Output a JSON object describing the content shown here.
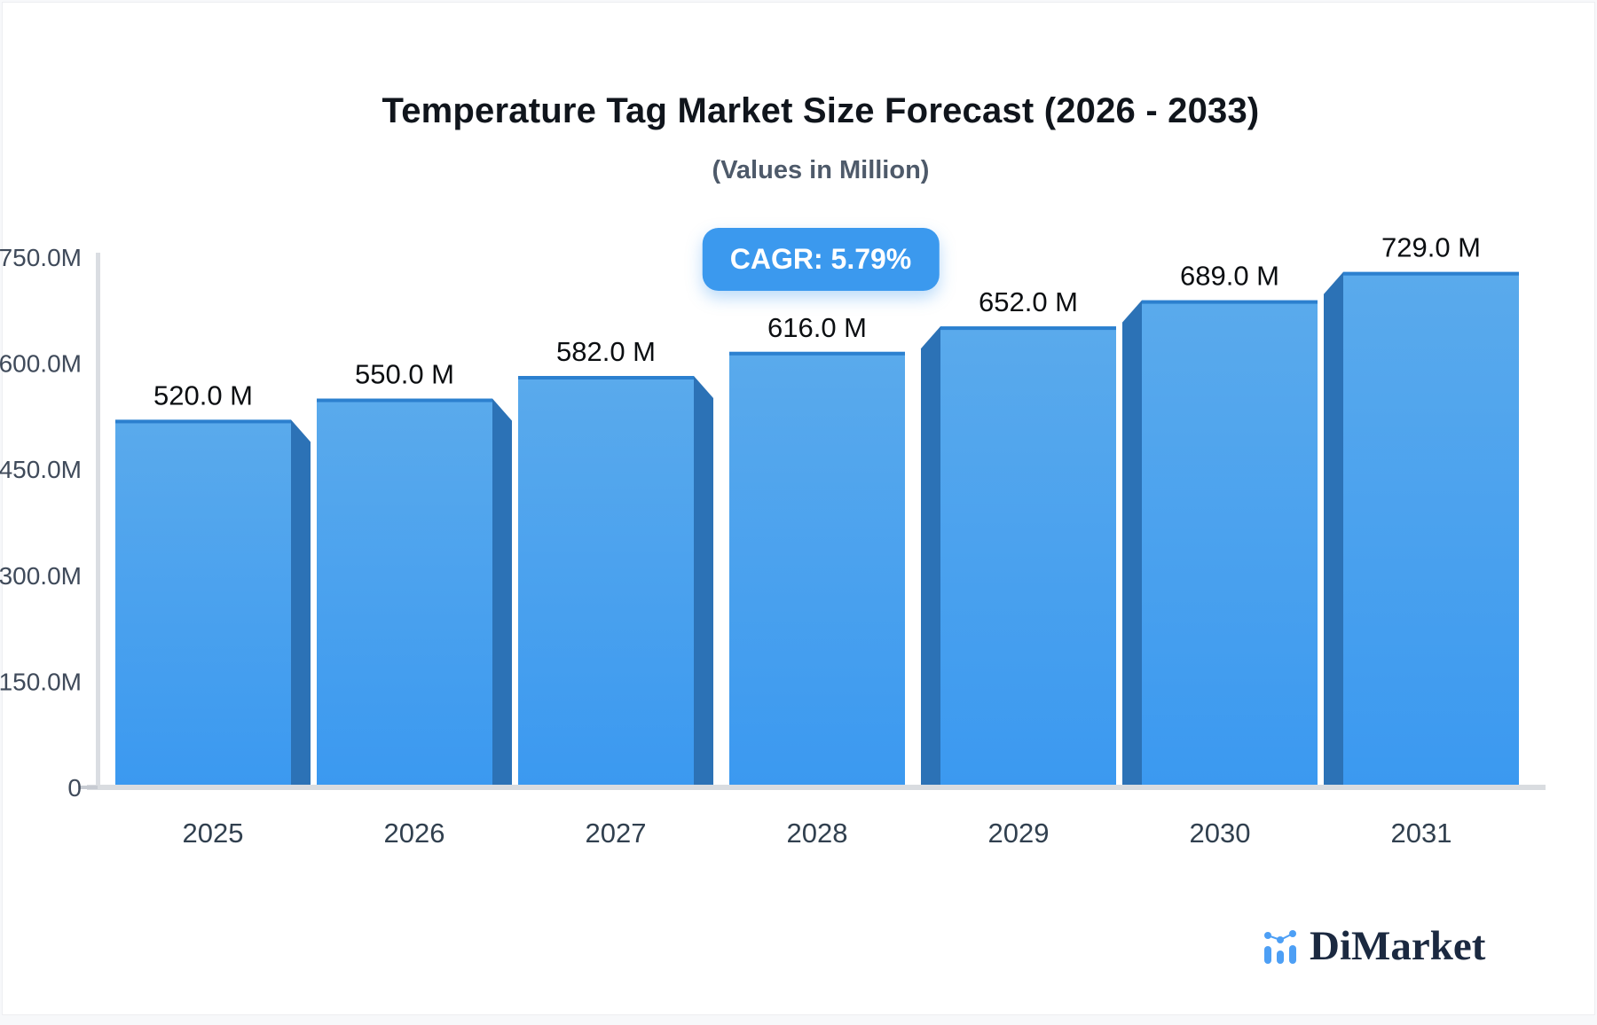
{
  "header": {
    "title": "Temperature Tag Market Size Forecast (2026 - 2033)",
    "subtitle": "(Values in Million)"
  },
  "badge": {
    "label": "CAGR: 5.79%",
    "bg": "#3b99ee"
  },
  "logo": {
    "text": "DiMarket",
    "icon": "bar-line-chart-icon",
    "blue": "#4d9ff5",
    "navy": "#1b2940"
  },
  "chart_data": {
    "type": "bar",
    "title": "Temperature Tag Market Size Forecast (2026 - 2033)",
    "subtitle": "(Values in Million)",
    "categories": [
      "2025",
      "2026",
      "2027",
      "2028",
      "2029",
      "2030",
      "2031"
    ],
    "values": [
      520,
      550,
      582,
      616,
      652,
      689,
      729
    ],
    "value_labels": [
      "520.0 M",
      "550.0 M",
      "582.0 M",
      "616.0 M",
      "652.0 M",
      "689.0 M",
      "729.0 M"
    ],
    "unit": "Million",
    "yticks": [
      750,
      600,
      450,
      300,
      150,
      0
    ],
    "ytick_labels": [
      "750.0M",
      "600.0M",
      "450.0M",
      "150.0M",
      "0"
    ],
    "ytick_labels_full": [
      "750.0M",
      "600.0M",
      "450.0M",
      "300.0M",
      "150.0M",
      "0"
    ],
    "ylim": [
      0,
      750
    ],
    "xlabel": "",
    "ylabel": "",
    "grid": false,
    "legend": false,
    "bar_style": "3d-perspective",
    "colors": {
      "bar_face_top": "#5aaaec",
      "bar_face_bottom": "#3b99f0",
      "bar_top_edge": "#2c80cf",
      "bar_side": "#2c72b6",
      "axis_line": "#dadde2",
      "baseline": "#d9dce0",
      "ytick_text": "#3f4a5a",
      "xtick_text": "#31404f",
      "value_text": "#0b0e11"
    }
  }
}
